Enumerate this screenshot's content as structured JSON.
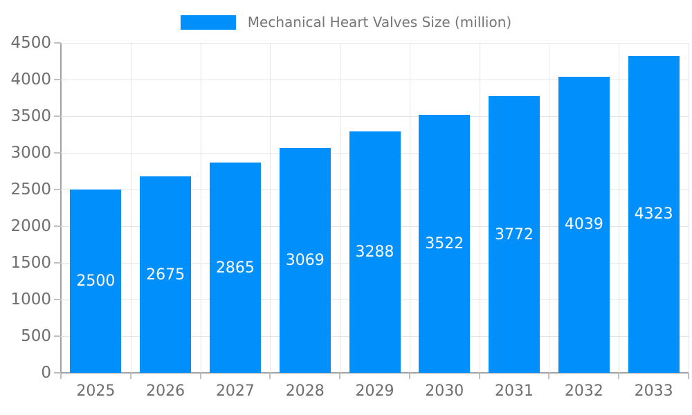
{
  "chart_data": {
    "type": "bar",
    "title": "Mechanical Heart Valves Size (million)",
    "series_name": "Mechanical Heart Valves Size (million)",
    "categories": [
      "2025",
      "2026",
      "2027",
      "2028",
      "2029",
      "2030",
      "2031",
      "2032",
      "2033"
    ],
    "values": [
      2500,
      2675,
      2865,
      3069,
      3288,
      3522,
      3772,
      4039,
      4323
    ],
    "xlabel": "",
    "ylabel": "",
    "ylim": [
      0,
      4500
    ],
    "yticks": [
      0,
      500,
      1000,
      1500,
      2000,
      2500,
      3000,
      3500,
      4000,
      4500
    ],
    "grid": true,
    "legend_position": "top",
    "bar_value_labels_shown": true,
    "colors": {
      "bar": "#008FFB",
      "grid": "#e4e4e4",
      "axis": "#a0a0a0",
      "tick": "#c0c0c0",
      "axis_text": "#6e6e6e",
      "bar_label": "#ffffff",
      "legend_text": "#757575"
    }
  }
}
